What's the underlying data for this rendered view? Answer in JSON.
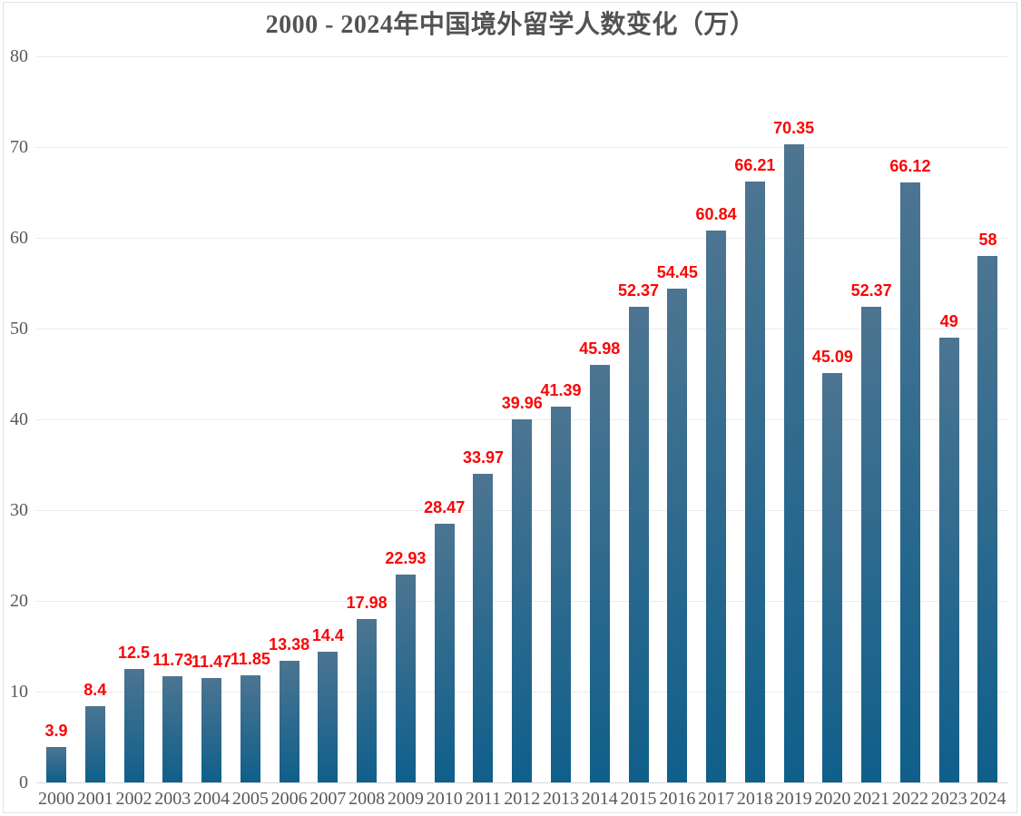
{
  "chart_data": {
    "type": "bar",
    "title": "2000 - 2024年中国境外留学人数变化（万）",
    "xlabel": "",
    "ylabel": "",
    "categories": [
      "2000",
      "2001",
      "2002",
      "2003",
      "2004",
      "2005",
      "2006",
      "2007",
      "2008",
      "2009",
      "2010",
      "2011",
      "2012",
      "2013",
      "2014",
      "2015",
      "2016",
      "2017",
      "2018",
      "2019",
      "2020",
      "2021",
      "2022",
      "2023",
      "2024"
    ],
    "values": [
      3.9,
      8.4,
      12.5,
      11.73,
      11.47,
      11.85,
      13.38,
      14.4,
      17.98,
      22.93,
      28.47,
      33.97,
      39.96,
      41.39,
      45.98,
      52.37,
      54.45,
      60.84,
      66.21,
      70.35,
      45.09,
      52.37,
      66.12,
      49,
      58
    ],
    "value_labels": [
      "3.9",
      "8.4",
      "12.5",
      "11.73",
      "11.47",
      "11.85",
      "13.38",
      "14.4",
      "17.98",
      "22.93",
      "28.47",
      "33.97",
      "39.96",
      "41.39",
      "45.98",
      "52.37",
      "54.45",
      "60.84",
      "66.21",
      "70.35",
      "45.09",
      "52.37",
      "66.12",
      "49",
      "58"
    ],
    "ylim": [
      0,
      80
    ],
    "yticks": [
      0,
      10,
      20,
      30,
      40,
      50,
      60,
      70,
      80
    ],
    "grid": true,
    "legend": "none",
    "colors": {
      "bar_gradient_top": "#4C7591",
      "bar_gradient_bottom": "#0F5F8B",
      "value_label": "#FA0505",
      "axis_text": "#595959",
      "title_text": "#535353",
      "gridline": "#EBEBEB",
      "axis_line": "#D8D8D8",
      "frame_border": "#DFE3E8",
      "background": "#FFFFFF"
    }
  }
}
